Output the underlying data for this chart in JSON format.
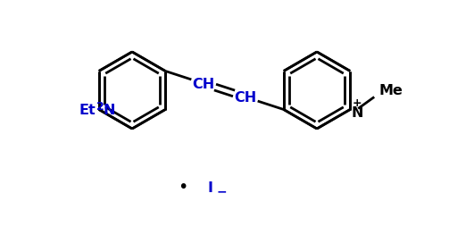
{
  "bg_color": "#ffffff",
  "line_color": "#000000",
  "text_color_black": "#000000",
  "text_color_blue": "#0000cc",
  "linewidth": 2.0,
  "figsize": [
    5.03,
    2.55
  ],
  "dpi": 100,
  "label_Et2N": "Et 2N",
  "label_dot": "•",
  "label_I": "I",
  "label_minus": "−",
  "label_plus": "+",
  "label_Me": "Me",
  "label_N": "N",
  "label_CH": "CH"
}
